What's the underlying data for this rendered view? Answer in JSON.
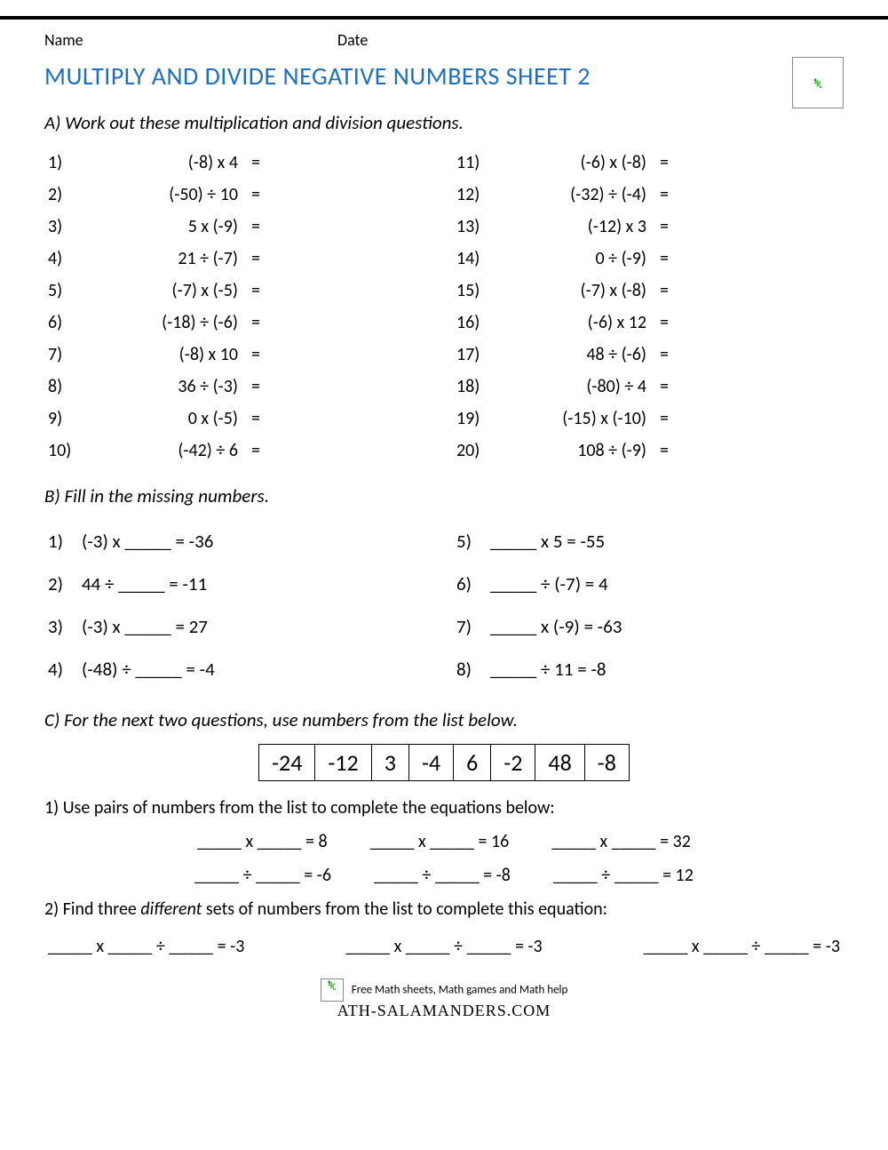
{
  "header": {
    "name_label": "Name",
    "date_label": "Date"
  },
  "title": "MULTIPLY AND DIVIDE NEGATIVE NUMBERS SHEET 2",
  "colors": {
    "title": "#1f6fbf",
    "text": "#000000",
    "background": "#ffffff"
  },
  "sectionA": {
    "instruction": "A) Work out these multiplication and division questions.",
    "left": [
      {
        "n": "1)",
        "expr": "(-8) x 4"
      },
      {
        "n": "2)",
        "expr": "(-50) ÷ 10"
      },
      {
        "n": "3)",
        "expr": "5 x (-9)"
      },
      {
        "n": "4)",
        "expr": "21 ÷ (-7)"
      },
      {
        "n": "5)",
        "expr": "(-7) x (-5)"
      },
      {
        "n": "6)",
        "expr": "(-18) ÷ (-6)"
      },
      {
        "n": "7)",
        "expr": "(-8) x 10"
      },
      {
        "n": "8)",
        "expr": "36 ÷ (-3)"
      },
      {
        "n": "9)",
        "expr": "0 x (-5)"
      },
      {
        "n": "10)",
        "expr": "(-42) ÷ 6"
      }
    ],
    "right": [
      {
        "n": "11)",
        "expr": "(-6) x (-8)"
      },
      {
        "n": "12)",
        "expr": "(-32) ÷ (-4)"
      },
      {
        "n": "13)",
        "expr": "(-12) x 3"
      },
      {
        "n": "14)",
        "expr": "0 ÷ (-9)"
      },
      {
        "n": "15)",
        "expr": "(-7) x (-8)"
      },
      {
        "n": "16)",
        "expr": "(-6) x 12"
      },
      {
        "n": "17)",
        "expr": "48 ÷ (-6)"
      },
      {
        "n": "18)",
        "expr": "(-80) ÷ 4"
      },
      {
        "n": "19)",
        "expr": "(-15) x (-10)"
      },
      {
        "n": "20)",
        "expr": "108 ÷ (-9)"
      }
    ]
  },
  "sectionB": {
    "instruction": "B) Fill in the missing numbers.",
    "left": [
      {
        "n": "1)",
        "text": "(-3) x _____ = -36"
      },
      {
        "n": "2)",
        "text": "44 ÷ _____ = -11"
      },
      {
        "n": "3)",
        "text": "(-3) x _____ = 27"
      },
      {
        "n": "4)",
        "text": "(-48) ÷ _____ = -4"
      }
    ],
    "right": [
      {
        "n": "5)",
        "text": "_____ x 5 = -55"
      },
      {
        "n": "6)",
        "text": "_____ ÷ (-7) = 4"
      },
      {
        "n": "7)",
        "text": "_____ x (-9) = -63"
      },
      {
        "n": "8)",
        "text": "_____ ÷ 11 = -8"
      }
    ]
  },
  "sectionC": {
    "instruction": "C) For the next two questions, use numbers from the list below.",
    "numbers": [
      "-24",
      "-12",
      "3",
      "-4",
      "6",
      "-2",
      "48",
      "-8"
    ],
    "q1_label": "1) Use pairs of numbers from the list to complete the equations below:",
    "q1_row1": [
      "_____ x _____ = 8",
      "_____ x _____ = 16",
      "_____ x _____ = 32"
    ],
    "q1_row2": [
      "_____ ÷ _____ = -6",
      "_____ ÷ _____ = -8",
      "_____ ÷ _____ = 12"
    ],
    "q2_label_pre": "2) Find three ",
    "q2_label_em": "different",
    "q2_label_post": " sets of numbers from the list to complete this equation:",
    "q2_eqs": [
      "_____ x _____ ÷ _____ = -3",
      "_____ x _____ ÷ _____ = -3",
      "_____ x _____ ÷ _____ = -3"
    ]
  },
  "footer": {
    "line1": "Free Math sheets, Math games and Math help",
    "line2": "ATH-SALAMANDERS.COM"
  }
}
